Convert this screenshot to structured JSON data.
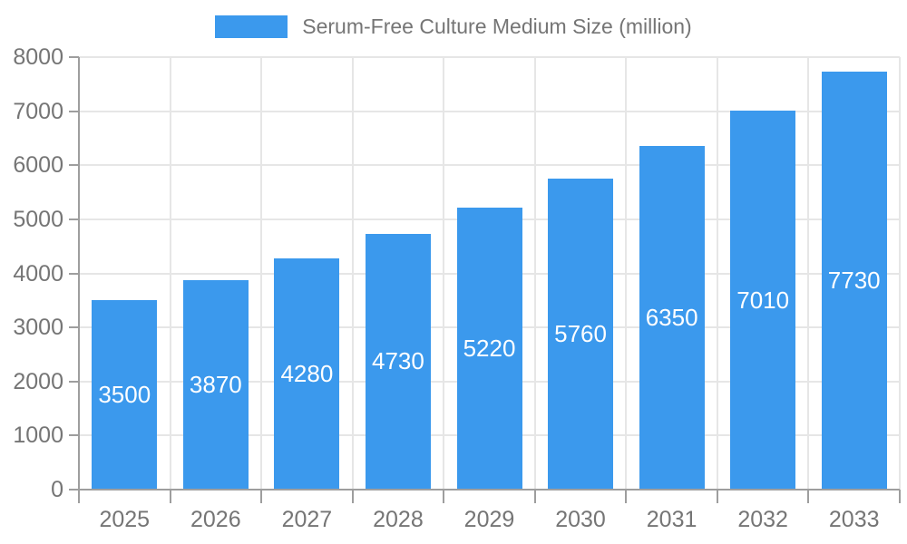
{
  "legend": {
    "label": "Serum-Free Culture Medium Size (million)"
  },
  "colors": {
    "bar": "#3b99ed",
    "grid": "#e6e6e6",
    "axis": "#9e9e9e",
    "text": "#757575",
    "bar_label": "#ffffff",
    "background": "#ffffff"
  },
  "chart_data": {
    "type": "bar",
    "title": "Serum-Free Culture Medium Size (million)",
    "series_name": "Serum-Free Culture Medium Size (million)",
    "categories": [
      "2025",
      "2026",
      "2027",
      "2028",
      "2029",
      "2030",
      "2031",
      "2032",
      "2033"
    ],
    "values": [
      3500,
      3870,
      4280,
      4730,
      5220,
      5760,
      6350,
      7010,
      7730
    ],
    "xlabel": "",
    "ylabel": "",
    "ylim": [
      0,
      8000
    ],
    "ytick_step": 1000,
    "yticks": [
      0,
      1000,
      2000,
      3000,
      4000,
      5000,
      6000,
      7000,
      8000
    ],
    "grid": true,
    "legend_position": "top",
    "value_labels": "inside-center"
  }
}
